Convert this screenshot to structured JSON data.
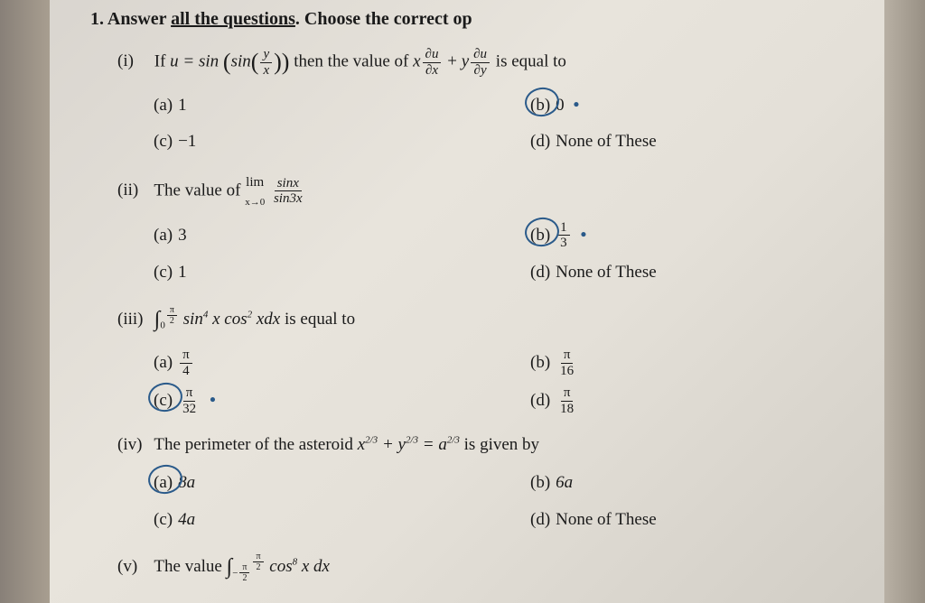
{
  "header": {
    "number": "1.",
    "text_before": "Answer ",
    "underlined": "all the questions",
    "text_after": ". Choose the correct op"
  },
  "questions": {
    "i": {
      "roman": "(i)",
      "text_start": "If ",
      "u_eq": "u = sin",
      "text_mid": " then the value of ",
      "text_end": " is equal to",
      "options": {
        "a": {
          "label": "(a)",
          "value": "1"
        },
        "b": {
          "label": "(b)",
          "value": "0",
          "circled": true,
          "dot": "•"
        },
        "c": {
          "label": "(c)",
          "value": "−1"
        },
        "d": {
          "label": "(d)",
          "value": "None of These"
        }
      }
    },
    "ii": {
      "roman": "(ii)",
      "text": "The value of ",
      "limit_text": "lim",
      "limit_sub": "x→0",
      "options": {
        "a": {
          "label": "(a)",
          "value": "3"
        },
        "b": {
          "label": "(b)",
          "circled": true,
          "dot": "•"
        },
        "c": {
          "label": "(c)",
          "value": "1"
        },
        "d": {
          "label": "(d)",
          "value": "None of These"
        }
      },
      "frac_b": {
        "num": "1",
        "den": "3"
      }
    },
    "iii": {
      "roman": "(iii)",
      "text_end": " is equal to",
      "integrand": "sin⁴ x cos² x dx",
      "options": {
        "a": {
          "label": "(a)"
        },
        "b": {
          "label": "(b)"
        },
        "c": {
          "label": "(c)",
          "circled": true,
          "dot": "•"
        },
        "d": {
          "label": "(d)"
        }
      },
      "fracs": {
        "a": {
          "num": "π",
          "den": "4"
        },
        "b": {
          "num": "π",
          "den": "16"
        },
        "c": {
          "num": "π",
          "den": "32"
        },
        "d": {
          "num": "π",
          "den": "18"
        }
      },
      "upper": {
        "num": "π",
        "den": "2"
      }
    },
    "iv": {
      "roman": "(iv)",
      "text_start": "The perimeter of the asteroid ",
      "eq": "x²ᐟ³ + y²ᐟ³ = a²ᐟ³",
      "text_end": " is given by",
      "options": {
        "a": {
          "label": "(a)",
          "value": "8a",
          "circled": true
        },
        "b": {
          "label": "(b)",
          "value": "6a"
        },
        "c": {
          "label": "(c)",
          "value": "4a"
        },
        "d": {
          "label": "(d)",
          "value": "None of These"
        }
      }
    },
    "v": {
      "roman": "(v)",
      "text": "The value ",
      "integrand": "cos⁸ x dx",
      "upper": {
        "num": "π",
        "den": "2"
      },
      "lower": {
        "num": "π",
        "den": "2"
      }
    }
  },
  "styling": {
    "background_gradient": [
      "#d8d4ce",
      "#e8e4dc",
      "#e4e0d8",
      "#d0ccc4"
    ],
    "text_color": "#1a1a1a",
    "circle_color": "#2a5a8a",
    "font_family": "Times New Roman",
    "header_fontsize": 20,
    "body_fontsize": 19,
    "frac_fontsize": 15
  }
}
